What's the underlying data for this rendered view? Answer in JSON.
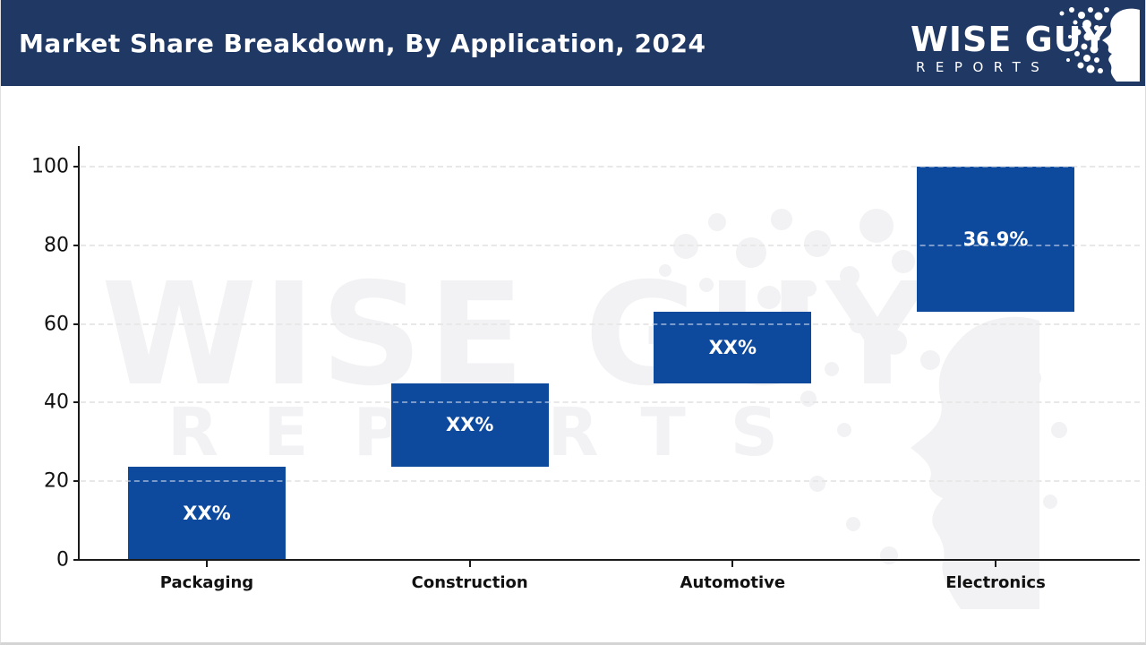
{
  "header": {
    "title": "Market Share Breakdown, By Application, 2024",
    "logo": {
      "primary": "WISE GUY",
      "secondary": "REPORTS"
    }
  },
  "watermark": {
    "line1": "WISE GUY",
    "line2": "REPORTS"
  },
  "chart_data": {
    "type": "bar",
    "subtype": "waterfall",
    "title": "Market Share Breakdown, By Application, 2024",
    "categories": [
      "Packaging",
      "Construction",
      "Automotive",
      "Electronics"
    ],
    "segments": [
      {
        "category": "Packaging",
        "start": 0,
        "end": 23.7,
        "value": 23.7,
        "label": "XX%"
      },
      {
        "category": "Construction",
        "start": 23.7,
        "end": 44.9,
        "value": 21.2,
        "label": "XX%"
      },
      {
        "category": "Automotive",
        "start": 44.9,
        "end": 63.1,
        "value": 18.2,
        "label": "XX%"
      },
      {
        "category": "Electronics",
        "start": 63.1,
        "end": 100,
        "value": 36.9,
        "label": "36.9%"
      }
    ],
    "xlabel": "",
    "ylabel": "",
    "ylim": [
      0,
      105
    ],
    "yticks": [
      0,
      20,
      40,
      60,
      80,
      100
    ],
    "grid": "horizontal-dashed",
    "legend": "none",
    "bar_color": "#0d4a9e",
    "bar_label_color": "#ffffff",
    "axis_color": "#1a1a1a",
    "grid_color": "#d6d6d6"
  },
  "colors": {
    "header_bg": "#1f3864",
    "header_text": "#ffffff",
    "bar": "#0d4a9e",
    "watermark": "#f2f2f4",
    "tick_text": "#111111"
  }
}
